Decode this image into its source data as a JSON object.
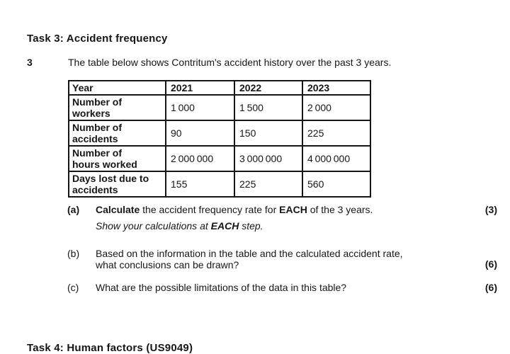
{
  "document": {
    "task_title": "Task 3: Accident frequency",
    "question_number": "3",
    "intro_text": "The table below shows Contritum's accident history over the past 3 years.",
    "next_task_heading": "Task 4: Human factors (US9049)"
  },
  "accident_table": {
    "header": [
      "Year",
      "2021",
      "2022",
      "2023"
    ],
    "rows": [
      {
        "label": "Number of\nworkers",
        "values": [
          "1 000",
          "1 500",
          "2 000"
        ]
      },
      {
        "label": "Number of\naccidents",
        "values": [
          "90",
          "150",
          "225"
        ]
      },
      {
        "label": "Number of\nhours worked",
        "values": [
          "2 000 000",
          "3 000 000",
          "4 000 000"
        ]
      },
      {
        "label": "Days lost due to\naccidents",
        "values": [
          "155",
          "225",
          "560"
        ]
      }
    ]
  },
  "questions": {
    "a": {
      "label": "(a)",
      "text_bold1": "Calculate",
      "text_mid": " the accident frequency rate for ",
      "text_bold2": "EACH",
      "text_end": " of the 3 years.",
      "note_start": "Show your calculations at ",
      "note_bold": "EACH",
      "note_end": " step.",
      "marks": "(3)"
    },
    "b": {
      "label": "(b)",
      "line1": "Based on the information in the table and the calculated accident rate,",
      "line2": "what conclusions can be drawn?",
      "marks": "(6)"
    },
    "c": {
      "label": "(c)",
      "text": "What are the possible limitations of the data in this table?",
      "marks": "(6)"
    }
  }
}
